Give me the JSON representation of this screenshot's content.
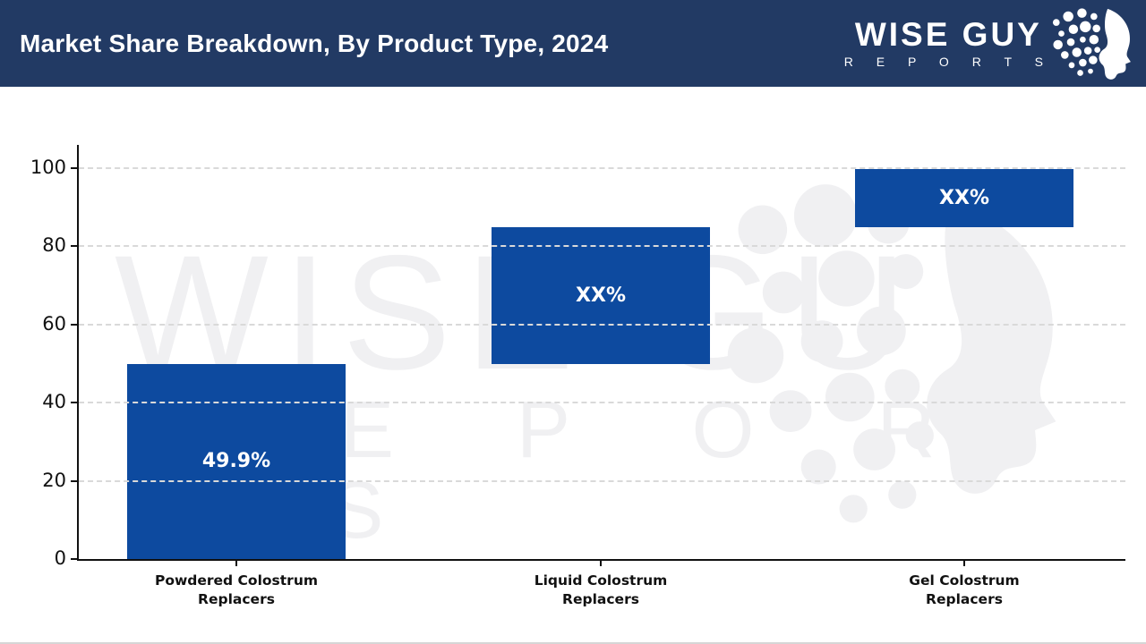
{
  "header": {
    "title": "Market Share Breakdown, By Product Type, 2024",
    "logo": {
      "line1": "WISE GUY",
      "line2": "R E P O R T S"
    }
  },
  "watermark": {
    "line1": "WISE GU",
    "line2": "R E P O R T S"
  },
  "colors": {
    "header_bg": "#223a64",
    "bar": "#0d4a9f",
    "gridline": "#d9d9d9",
    "axis": "#111111",
    "watermark": "#f0f0f2",
    "label_on_bar": "#ffffff"
  },
  "chart_data": {
    "type": "bar",
    "subtype": "waterfall",
    "title": "Market Share Breakdown, By Product Type, 2024",
    "categories": [
      "Powdered Colostrum\nReplacers",
      "Liquid Colostrum\nReplacers",
      "Gel Colostrum\nReplacers"
    ],
    "segments": [
      {
        "category": "Powdered Colostrum Replacers",
        "start": 0,
        "end": 49.9,
        "label": "49.9%"
      },
      {
        "category": "Liquid Colostrum Replacers",
        "start": 49.9,
        "end": 84.9,
        "label": "XX%"
      },
      {
        "category": "Gel Colostrum Replacers",
        "start": 85.0,
        "end": 99.8,
        "label": "XX%"
      }
    ],
    "yticks": [
      0,
      20,
      40,
      60,
      80,
      100
    ],
    "ylim": [
      0,
      105
    ],
    "xlabel": "",
    "ylabel": "",
    "grid": "horizontal dashed, drawn over bars",
    "legend": "none",
    "bar_color": "#0d4a9f"
  }
}
